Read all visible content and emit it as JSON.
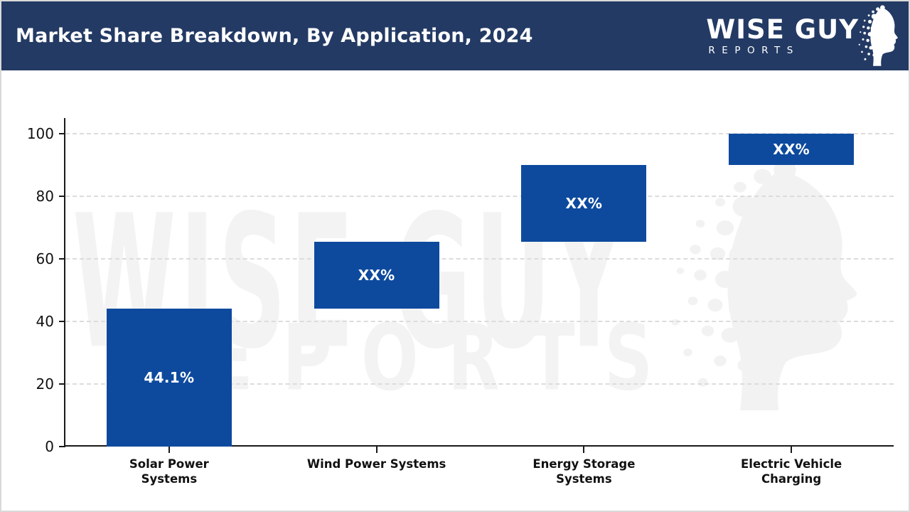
{
  "header": {
    "title": "Market Share Breakdown, By Application, 2024",
    "logo": {
      "wordmark": "WISE GUY",
      "subtext": "REPORTS"
    }
  },
  "watermark": {
    "line1": "WISE GUY",
    "line2": "R E P O R T S"
  },
  "colors": {
    "header_bg": "#233a64",
    "bar": "#0d4a9e",
    "bar_label": "#ffffff",
    "gridline": "#dcdcdc",
    "axis": "#1a1a1a",
    "watermark": "#f3f3f3",
    "page_border": "#d9d9d9"
  },
  "chart_data": {
    "type": "bar",
    "subtype": "waterfall",
    "title": "Market Share Breakdown, By Application, 2024",
    "xlabel": "",
    "ylabel": "",
    "ylim": [
      0,
      105
    ],
    "yticks": [
      0,
      20,
      40,
      60,
      80,
      100
    ],
    "grid": "horizontal-dashed",
    "legend": "none",
    "categories": [
      "Solar Power\nSystems",
      "Wind Power Systems",
      "Energy Storage\nSystems",
      "Electric Vehicle\nCharging"
    ],
    "segments": [
      {
        "category": "Solar Power Systems",
        "start": 0,
        "end": 44.1,
        "label": "44.1%"
      },
      {
        "category": "Wind Power Systems",
        "start": 44.1,
        "end": 65.4,
        "label": "XX%"
      },
      {
        "category": "Energy Storage Systems",
        "start": 65.4,
        "end": 90.0,
        "label": "XX%"
      },
      {
        "category": "Electric Vehicle Charging",
        "start": 90.0,
        "end": 100.0,
        "label": "XX%"
      }
    ]
  }
}
